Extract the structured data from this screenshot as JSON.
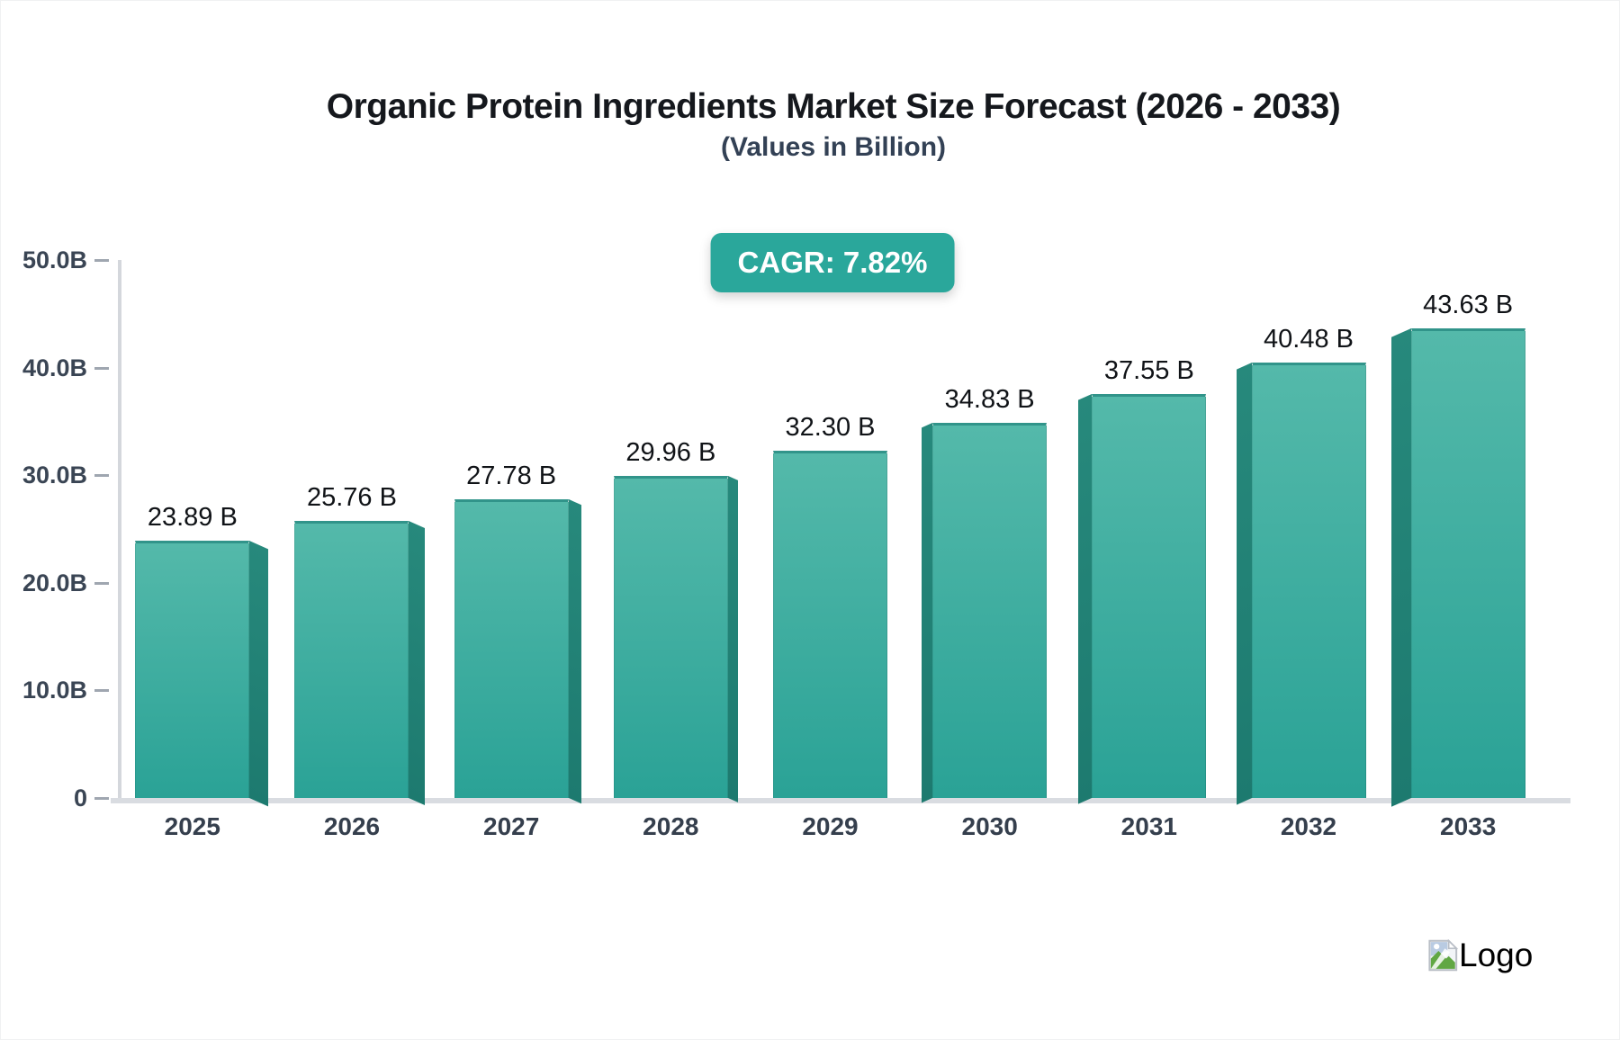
{
  "header": {
    "title": "Organic Protein Ingredients Market Size Forecast (2026 - 2033)",
    "subtitle": "(Values in Billion)"
  },
  "badge": {
    "label": "CAGR: 7.82%",
    "bg_color": "#2aa79b"
  },
  "chart_data": {
    "type": "bar",
    "title": "Organic Protein Ingredients Market Size Forecast (2026 - 2033)",
    "subtitle": "(Values in Billion)",
    "categories": [
      "2025",
      "2026",
      "2027",
      "2028",
      "2029",
      "2030",
      "2031",
      "2032",
      "2033"
    ],
    "values": [
      23.89,
      25.76,
      27.78,
      29.96,
      32.3,
      34.83,
      37.55,
      40.48,
      43.63
    ],
    "value_labels": [
      "23.89 B",
      "25.76 B",
      "27.78 B",
      "29.96 B",
      "32.30 B",
      "34.83 B",
      "37.55 B",
      "40.48 B",
      "43.63 B"
    ],
    "xlabel": "",
    "ylabel": "",
    "y_tick_labels": [
      "50.0B",
      "40.0B",
      "30.0B",
      "20.0B",
      "10.0B",
      "0"
    ],
    "ylim": [
      0,
      50
    ],
    "grid": "off",
    "legend": "none",
    "bar_style": "3d-column",
    "bar_color_top": "#54b9aa",
    "bar_color_bottom": "#2aa296",
    "bar_side_color": "#1f8074",
    "axis_color": "#d4d7dc",
    "label_color": "#3a4554"
  },
  "footer": {
    "logo_alt": "Logo"
  }
}
